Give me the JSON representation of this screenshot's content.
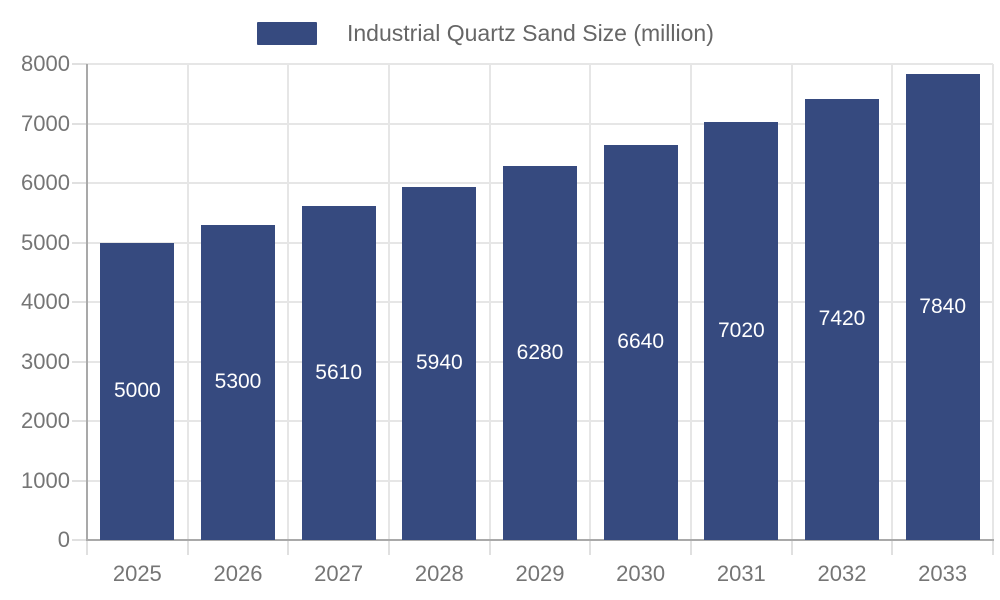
{
  "legend": {
    "label": "Industrial Quartz Sand Size (million)"
  },
  "colors": {
    "bar": "#364a7f",
    "bar_value_text": "#ffffff",
    "axis_text": "#757575",
    "legend_text": "#666666",
    "grid_line": "#e6e6e6",
    "tick_line": "#e0e0e0",
    "axis_line": "#a9a9a9",
    "background": "#ffffff"
  },
  "chart_data": {
    "type": "bar",
    "title": "",
    "categories": [
      "2025",
      "2026",
      "2027",
      "2028",
      "2029",
      "2030",
      "2031",
      "2032",
      "2033"
    ],
    "series": [
      {
        "name": "Industrial Quartz Sand Size (million)",
        "color": "#364a7f",
        "values": [
          5000,
          5300,
          5610,
          5940,
          6280,
          6640,
          7020,
          7420,
          7840
        ]
      }
    ],
    "value_labels": "inside-center",
    "xlabel": "",
    "ylabel": "",
    "ylim": [
      0,
      8000
    ],
    "yticks": [
      0,
      1000,
      2000,
      3000,
      4000,
      5000,
      6000,
      7000,
      8000
    ],
    "grid": true,
    "legend_position": "top"
  }
}
